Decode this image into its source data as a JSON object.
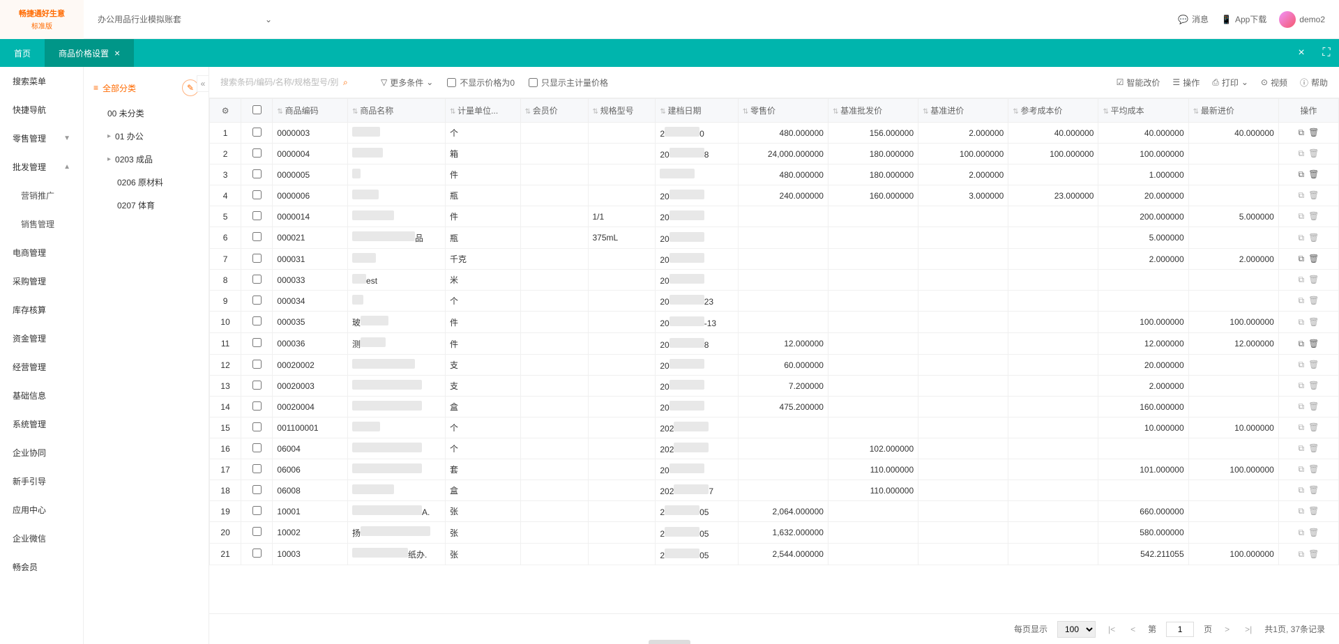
{
  "header": {
    "logo_main": "畅捷通好生意",
    "logo_sub": "标准版",
    "workspace": "办公用品行业模拟账套",
    "msg": "消息",
    "app": "App下载",
    "user": "demo2"
  },
  "tabs": {
    "home": "首页",
    "active": "商品价格设置"
  },
  "sidebar": [
    {
      "label": "搜索菜单",
      "expand": ""
    },
    {
      "label": "快捷导航",
      "expand": ""
    },
    {
      "label": "零售管理",
      "expand": "▼"
    },
    {
      "label": "批发管理",
      "expand": "▲"
    },
    {
      "label": "营销推广",
      "sub": true
    },
    {
      "label": "销售管理",
      "sub": true
    },
    {
      "label": "电商管理",
      "expand": ""
    },
    {
      "label": "采购管理",
      "expand": ""
    },
    {
      "label": "库存核算",
      "expand": ""
    },
    {
      "label": "资金管理",
      "expand": ""
    },
    {
      "label": "经营管理",
      "expand": ""
    },
    {
      "label": "基础信息",
      "expand": ""
    },
    {
      "label": "系统管理",
      "expand": ""
    },
    {
      "label": "企业协同",
      "expand": ""
    },
    {
      "label": "新手引导",
      "expand": ""
    },
    {
      "label": "应用中心",
      "expand": ""
    },
    {
      "label": "企业微信",
      "expand": ""
    },
    {
      "label": "畅会员",
      "expand": ""
    }
  ],
  "tree": {
    "root": "全部分类",
    "items": [
      {
        "label": "00 未分类",
        "caret": ""
      },
      {
        "label": "01 办公",
        "caret": "▸"
      },
      {
        "label": "0203 成品",
        "caret": "▸"
      },
      {
        "label": "0206 原材料",
        "caret": "",
        "l2": true
      },
      {
        "label": "0207 体育",
        "caret": "",
        "l2": true
      }
    ]
  },
  "toolbar": {
    "search_ph": "搜索条码/编码/名称/规格型号/别名",
    "more": "更多条件",
    "hide_zero": "不显示价格为0",
    "main_unit": "只显示主计量价格",
    "smart": "智能改价",
    "ops": "操作",
    "print": "打印",
    "video": "视频",
    "help": "帮助"
  },
  "columns": [
    "",
    "",
    "商品编码",
    "商品名称",
    "计量单位...",
    "会员价",
    "规格型号",
    "建档日期",
    "零售价",
    "基准批发价",
    "基准进价",
    "参考成本价",
    "平均成本",
    "最新进价",
    "操作"
  ],
  "rows": [
    {
      "n": 1,
      "code": "0000003",
      "name_w": 40,
      "unit": "个",
      "spec": "",
      "date_a": "2",
      "date_b": "0",
      "retail": "480.000000",
      "whole": "156.000000",
      "cost": "2.000000",
      "ref": "40.000000",
      "avg": "40.000000",
      "last": "40.000000",
      "op": true
    },
    {
      "n": 2,
      "code": "0000004",
      "name_w": 44,
      "unit": "箱",
      "spec": "",
      "date_a": "20",
      "date_b": "8",
      "retail": "24,000.000000",
      "whole": "180.000000",
      "cost": "100.000000",
      "ref": "100.000000",
      "avg": "100.000000",
      "last": "",
      "op": false
    },
    {
      "n": 3,
      "code": "0000005",
      "name_w": 12,
      "unit": "件",
      "spec": "",
      "date_a": "",
      "date_b": "",
      "retail": "480.000000",
      "whole": "180.000000",
      "cost": "2.000000",
      "ref": "",
      "avg": "1.000000",
      "last": "",
      "op": true
    },
    {
      "n": 4,
      "code": "0000006",
      "name_w": 38,
      "unit": "瓶",
      "spec": "",
      "date_a": "20",
      "date_b": "",
      "retail": "240.000000",
      "whole": "160.000000",
      "cost": "3.000000",
      "ref": "23.000000",
      "avg": "20.000000",
      "last": "",
      "op": false
    },
    {
      "n": 5,
      "code": "0000014",
      "name_w": 60,
      "unit": "件",
      "spec": "1/1",
      "date_a": "20",
      "date_b": "",
      "retail": "",
      "whole": "",
      "cost": "",
      "ref": "",
      "avg": "200.000000",
      "last": "5.000000",
      "op": false
    },
    {
      "n": 6,
      "code": "000021",
      "name_w": 90,
      "name_suf": "品",
      "unit": "瓶",
      "spec": "375mL",
      "date_a": "20",
      "date_b": "",
      "retail": "",
      "whole": "",
      "cost": "",
      "ref": "",
      "avg": "5.000000",
      "last": "",
      "op": false
    },
    {
      "n": 7,
      "code": "000031",
      "name_w": 34,
      "unit": "千克",
      "spec": "",
      "date_a": "20",
      "date_b": "",
      "retail": "",
      "whole": "",
      "cost": "",
      "ref": "",
      "avg": "2.000000",
      "last": "2.000000",
      "op": true
    },
    {
      "n": 8,
      "code": "000033",
      "name_w": 20,
      "name_suf": "est",
      "unit": "米",
      "spec": "",
      "date_a": "20",
      "date_b": "",
      "retail": "",
      "whole": "",
      "cost": "",
      "ref": "",
      "avg": "",
      "last": "",
      "op": false
    },
    {
      "n": 9,
      "code": "000034",
      "name_w": 16,
      "unit": "个",
      "spec": "",
      "date_a": "20",
      "date_b": "23",
      "retail": "",
      "whole": "",
      "cost": "",
      "ref": "",
      "avg": "",
      "last": "",
      "op": false
    },
    {
      "n": 10,
      "code": "000035",
      "name_w": 40,
      "name_pre": "玻",
      "unit": "件",
      "spec": "",
      "date_a": "20",
      "date_b": "-13",
      "retail": "",
      "whole": "",
      "cost": "",
      "ref": "",
      "avg": "100.000000",
      "last": "100.000000",
      "op": false
    },
    {
      "n": 11,
      "code": "000036",
      "name_w": 36,
      "name_pre": "测",
      "unit": "件",
      "spec": "",
      "date_a": "20",
      "date_b": "8",
      "retail": "12.000000",
      "whole": "",
      "cost": "",
      "ref": "",
      "avg": "12.000000",
      "last": "12.000000",
      "op": true
    },
    {
      "n": 12,
      "code": "00020002",
      "name_w": 90,
      "unit": "支",
      "spec": "",
      "date_a": "20",
      "date_b": "",
      "retail": "60.000000",
      "whole": "",
      "cost": "",
      "ref": "",
      "avg": "20.000000",
      "last": "",
      "op": false
    },
    {
      "n": 13,
      "code": "00020003",
      "name_w": 100,
      "unit": "支",
      "spec": "",
      "date_a": "20",
      "date_b": "",
      "retail": "7.200000",
      "whole": "",
      "cost": "",
      "ref": "",
      "avg": "2.000000",
      "last": "",
      "op": false
    },
    {
      "n": 14,
      "code": "00020004",
      "name_w": 100,
      "unit": "盒",
      "spec": "",
      "date_a": "20",
      "date_b": "",
      "retail": "475.200000",
      "whole": "",
      "cost": "",
      "ref": "",
      "avg": "160.000000",
      "last": "",
      "op": false
    },
    {
      "n": 15,
      "code": "001100001",
      "name_w": 40,
      "unit": "个",
      "spec": "",
      "date_a": "202",
      "date_b": "",
      "retail": "",
      "whole": "",
      "cost": "",
      "ref": "",
      "avg": "10.000000",
      "last": "10.000000",
      "op": false
    },
    {
      "n": 16,
      "code": "06004",
      "name_w": 100,
      "unit": "个",
      "spec": "",
      "date_a": "202",
      "date_b": "",
      "retail": "",
      "whole": "102.000000",
      "cost": "",
      "ref": "",
      "avg": "",
      "last": "",
      "op": false
    },
    {
      "n": 17,
      "code": "06006",
      "name_w": 100,
      "unit": "套",
      "spec": "",
      "date_a": "20",
      "date_b": "",
      "retail": "",
      "whole": "110.000000",
      "cost": "",
      "ref": "",
      "avg": "101.000000",
      "last": "100.000000",
      "op": false
    },
    {
      "n": 18,
      "code": "06008",
      "name_w": 60,
      "unit": "盒",
      "spec": "",
      "date_a": "202",
      "date_b": "7",
      "retail": "",
      "whole": "110.000000",
      "cost": "",
      "ref": "",
      "avg": "",
      "last": "",
      "op": false
    },
    {
      "n": 19,
      "code": "10001",
      "name_w": 100,
      "name_suf": "A.",
      "unit": "张",
      "spec": "",
      "date_a": "2",
      "date_b": "05",
      "retail": "2,064.000000",
      "whole": "",
      "cost": "",
      "ref": "",
      "avg": "660.000000",
      "last": "",
      "op": false
    },
    {
      "n": 20,
      "code": "10002",
      "name_w": 100,
      "name_pre": "扬",
      "unit": "张",
      "spec": "",
      "date_a": "2",
      "date_b": "05",
      "retail": "1,632.000000",
      "whole": "",
      "cost": "",
      "ref": "",
      "avg": "580.000000",
      "last": "",
      "op": false
    },
    {
      "n": 21,
      "code": "10003",
      "name_w": 80,
      "name_suf": "纸办.",
      "unit": "张",
      "spec": "",
      "date_a": "2",
      "date_b": "05",
      "retail": "2,544.000000",
      "whole": "",
      "cost": "",
      "ref": "",
      "avg": "542.211055",
      "last": "100.000000",
      "op": false
    }
  ],
  "pager": {
    "per_page": "每页显示",
    "size": "100",
    "page_pre": "第",
    "page": "1",
    "page_suf": "页",
    "total": "共1页, 37条记录"
  }
}
